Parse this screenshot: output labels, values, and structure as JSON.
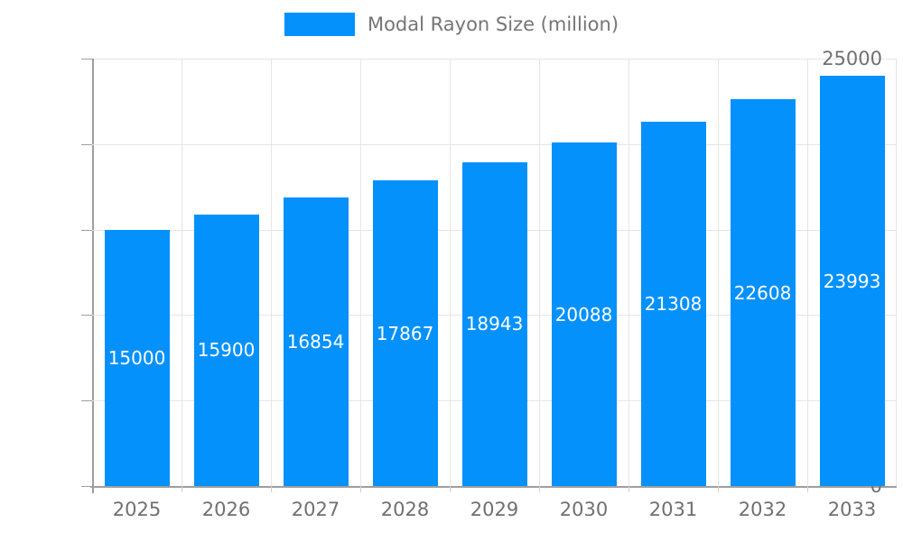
{
  "legend": {
    "label": "Modal Rayon Size (million)",
    "position": "top"
  },
  "chart_data": {
    "type": "bar",
    "title": "Modal Rayon Size (million)",
    "categories": [
      "2025",
      "2026",
      "2027",
      "2028",
      "2029",
      "2030",
      "2031",
      "2032",
      "2033"
    ],
    "values": [
      15000,
      15900,
      16854,
      17867,
      18943,
      20088,
      21308,
      22608,
      23993
    ],
    "xlabel": "",
    "ylabel": "",
    "ylim": [
      0,
      25000
    ],
    "yticks": [
      0,
      5000,
      10000,
      15000,
      20000,
      25000
    ],
    "grid": true,
    "legend_position": "top",
    "value_labels_inside_bars": true,
    "colors": {
      "bar": "#0591fb",
      "grid": "#e5e5e5",
      "axis": "#9e9e9e",
      "tick_text": "#707070",
      "legend_text": "#757575",
      "value_text": "#ffffff",
      "background": "#ffffff"
    }
  }
}
